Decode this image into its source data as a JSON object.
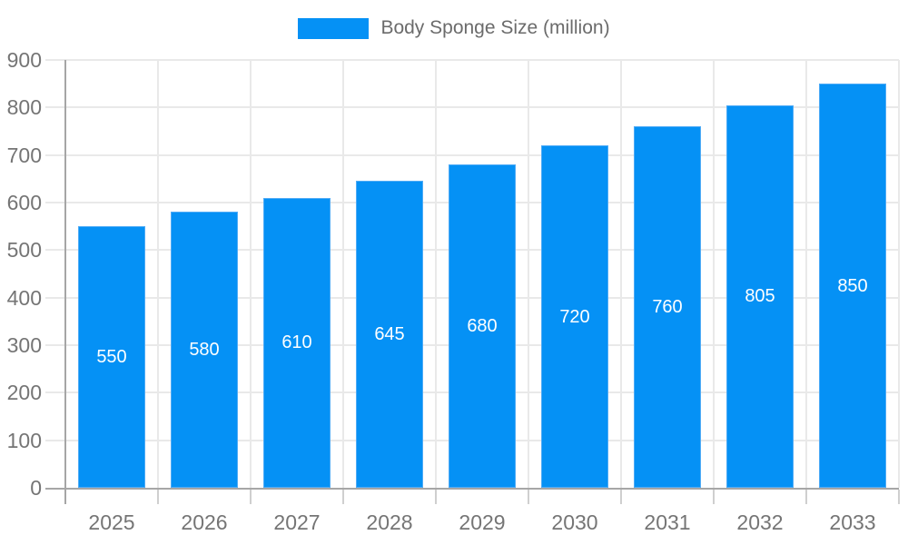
{
  "chart_data": {
    "type": "bar",
    "title": "Body Sponge Size (million)",
    "legend": {
      "label": "Body Sponge Size (million)",
      "position": "top-center"
    },
    "categories": [
      "2025",
      "2026",
      "2027",
      "2028",
      "2029",
      "2030",
      "2031",
      "2032",
      "2033"
    ],
    "series": [
      {
        "name": "Body Sponge Size (million)",
        "values": [
          550,
          580,
          610,
          645,
          680,
          720,
          760,
          805,
          850
        ]
      }
    ],
    "xlabel": "",
    "ylabel": "",
    "ylim": [
      0,
      900
    ],
    "ytick_step": 100,
    "yticks": [
      0,
      100,
      200,
      300,
      400,
      500,
      600,
      700,
      800,
      900
    ],
    "grid": true,
    "bar_value_labels": true,
    "colors": {
      "bar_fill": "#0591F5",
      "bar_border": "#4FABF6",
      "bar_label_text": "#FFFFFF",
      "axis_line": "#A6A6A6",
      "grid_line": "#E9E9E9",
      "tick_line": "#CFCFCF",
      "axis_text": "#757575",
      "legend_text": "#6B6B6B",
      "background": "#FFFFFF"
    }
  }
}
